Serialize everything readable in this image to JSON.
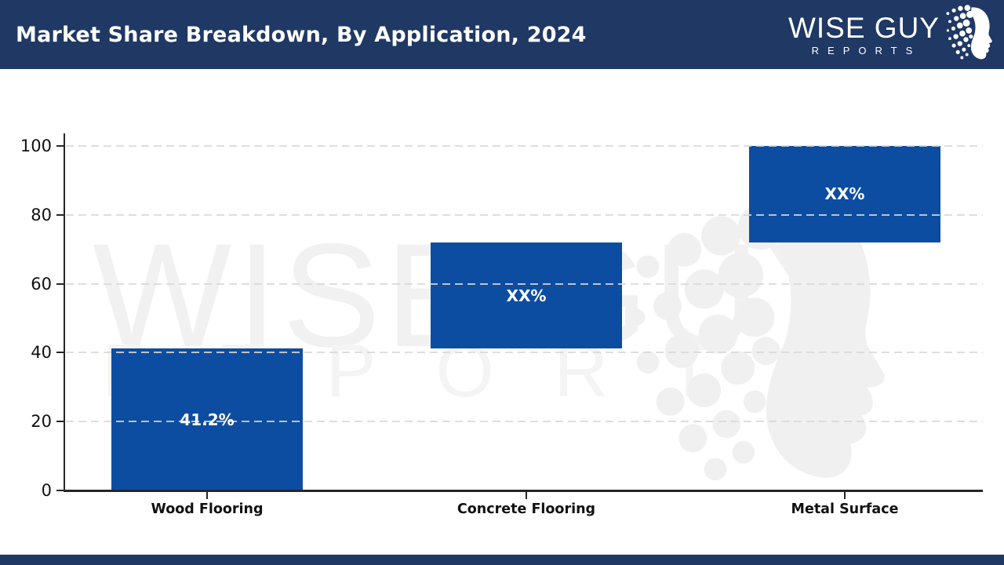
{
  "header": {
    "title": "Market Share Breakdown, By Application, 2024",
    "logo": {
      "line1": "WISE GUY",
      "line2": "REPORTS"
    }
  },
  "watermark": {
    "line1": "WISE GUY",
    "line2": "REPORTS"
  },
  "colors": {
    "header_bg": "#1F3864",
    "footer_bg": "#1F3864",
    "bar": "#0D4DA1",
    "grid": "#d8d8d8",
    "axis": "#262626",
    "bar_label": "#ffffff"
  },
  "chart_data": {
    "type": "bar",
    "subtype": "waterfall",
    "title": "Market Share Breakdown, By Application, 2024",
    "categories": [
      "Wood Flooring",
      "Concrete Flooring",
      "Metal Surface"
    ],
    "segments": [
      {
        "category": "Wood Flooring",
        "start": 0,
        "end": 41.2,
        "label": "41.2%"
      },
      {
        "category": "Concrete Flooring",
        "start": 41.2,
        "end": 72,
        "label": "XX%"
      },
      {
        "category": "Metal Surface",
        "start": 72,
        "end": 100,
        "label": "XX%"
      }
    ],
    "yticks": [
      0,
      20,
      40,
      60,
      80,
      100
    ],
    "ylim": [
      0,
      100
    ],
    "xlabel": "",
    "ylabel": "",
    "grid": "dashed-horizontal",
    "legend": "none"
  }
}
